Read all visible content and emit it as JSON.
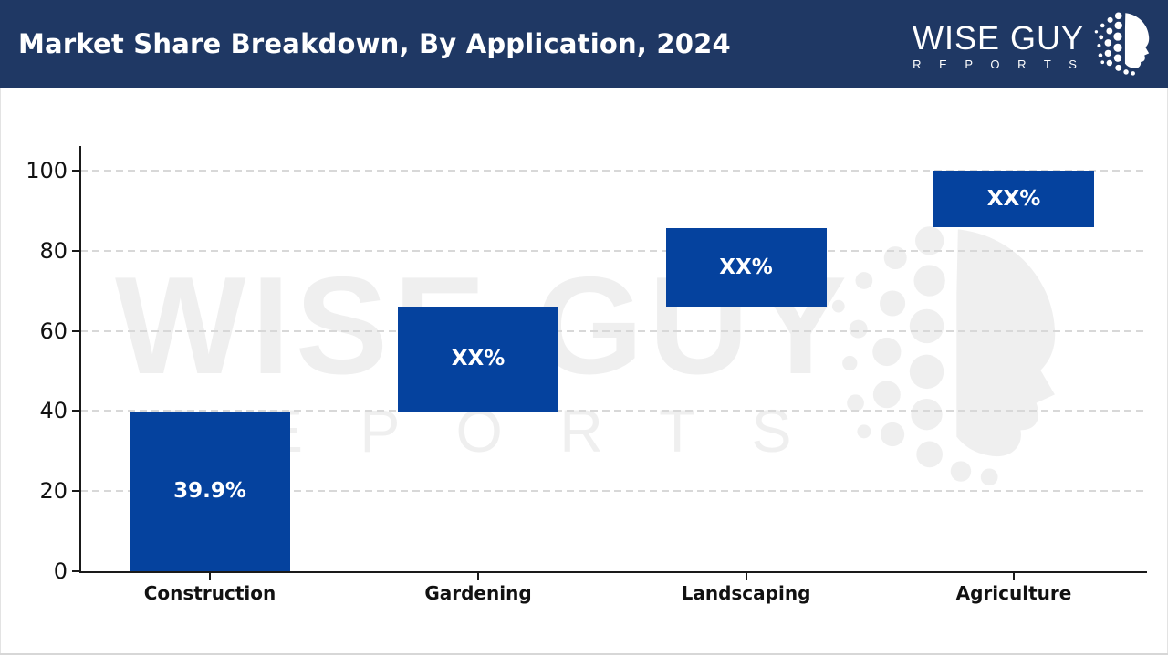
{
  "header": {
    "title": "Market Share Breakdown, By Application, 2024",
    "logo": {
      "line1": "WISE GUY",
      "line2": "R E P O R T S"
    }
  },
  "watermark": {
    "line1": "WISE GUY",
    "line2": "R E P O R T S"
  },
  "colors": {
    "header_bg": "#1f3864",
    "bar": "#05429e",
    "bar_label_text": "#ffffff",
    "gridline": "#d8d8d8",
    "axis": "#1a1a1a",
    "tick_label": "#111111",
    "watermark": "#efefef",
    "bottom_border": "#d7d7d7"
  },
  "chart_data": {
    "type": "bar",
    "subtype": "waterfall",
    "title": "Market Share Breakdown, By Application, 2024",
    "categories": [
      "Construction",
      "Gardening",
      "Landscaping",
      "Agriculture"
    ],
    "segments": [
      {
        "category": "Construction",
        "start": 0,
        "end": 39.9,
        "label": "39.9%"
      },
      {
        "category": "Gardening",
        "start": 39.9,
        "end": 66.1,
        "label": "XX%"
      },
      {
        "category": "Landscaping",
        "start": 66.1,
        "end": 85.6,
        "label": "XX%"
      },
      {
        "category": "Agriculture",
        "start": 85.8,
        "end": 100,
        "label": "XX%"
      }
    ],
    "yticks": [
      0,
      20,
      40,
      60,
      80,
      100
    ],
    "ylim": [
      0,
      105
    ],
    "xlabel": "",
    "ylabel": "",
    "grid": "horizontal-dashed",
    "legend": "none"
  }
}
